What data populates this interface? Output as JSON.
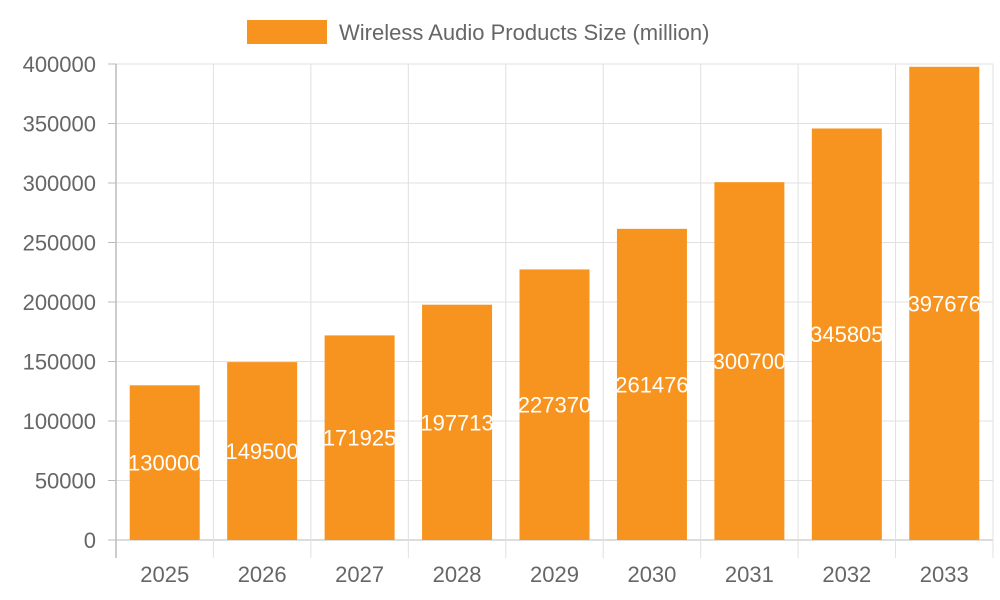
{
  "chart_data": {
    "type": "bar",
    "title": "",
    "xlabel": "",
    "ylabel": "",
    "categories": [
      "2025",
      "2026",
      "2027",
      "2028",
      "2029",
      "2030",
      "2031",
      "2032",
      "2033"
    ],
    "series": [
      {
        "name": "Wireless Audio Products Size (million)",
        "values": [
          130000,
          149500,
          171925,
          197713,
          227370,
          261476,
          300700,
          345805,
          397676
        ]
      }
    ],
    "ylim": [
      0,
      400000
    ],
    "yticks": [
      0,
      50000,
      100000,
      150000,
      200000,
      250000,
      300000,
      350000,
      400000
    ],
    "grid": true,
    "legend_position": "top",
    "data_labels": true,
    "colors": {
      "bar": "#f7941f",
      "grid": "#e0e0e0",
      "axis": "#bbbbbb",
      "text": "#666666",
      "label": "#ffffff"
    }
  }
}
